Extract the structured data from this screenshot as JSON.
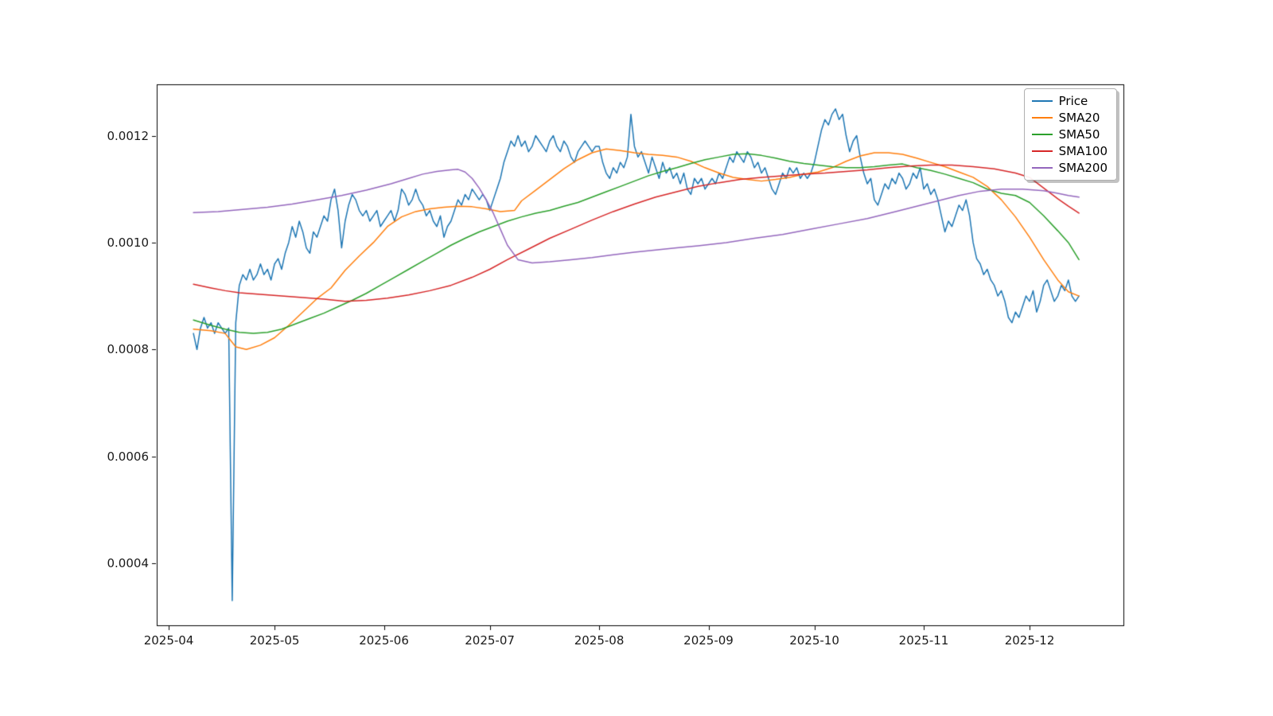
{
  "figure": {
    "background": "#ffffff",
    "axis_color": "#000000",
    "tick_label_color": "#1a1a1a"
  },
  "chart_data": {
    "type": "line",
    "title": "",
    "xlabel": "",
    "ylabel": "",
    "grid": false,
    "x_unit": "days since 2025-04-01",
    "xlim": [
      -3.4,
      270.6
    ],
    "ylim": [
      0.000284,
      0.001296
    ],
    "y_scale": 1e-05,
    "x_ticks": [
      {
        "value": 0,
        "label": "2025-04"
      },
      {
        "value": 30,
        "label": "2025-05"
      },
      {
        "value": 61,
        "label": "2025-06"
      },
      {
        "value": 91,
        "label": "2025-07"
      },
      {
        "value": 122,
        "label": "2025-08"
      },
      {
        "value": 153,
        "label": "2025-09"
      },
      {
        "value": 183,
        "label": "2025-10"
      },
      {
        "value": 214,
        "label": "2025-11"
      },
      {
        "value": 244,
        "label": "2025-12"
      }
    ],
    "y_ticks": [
      {
        "value": 0.0004,
        "label": "0.0004"
      },
      {
        "value": 0.0006,
        "label": "0.0006"
      },
      {
        "value": 0.0008,
        "label": "0.0008"
      },
      {
        "value": 0.001,
        "label": "0.0010"
      },
      {
        "value": 0.0012,
        "label": "0.0012"
      }
    ],
    "legend": {
      "position": "upper right",
      "entries": [
        "Price",
        "SMA20",
        "SMA50",
        "SMA100",
        "SMA200"
      ]
    },
    "series": [
      {
        "name": "Price",
        "color": "#1f77b4",
        "x0": 7,
        "dx": 1,
        "y": [
          83,
          80,
          84,
          86,
          84,
          85,
          83,
          85,
          84,
          83,
          84,
          33,
          85,
          92,
          94,
          93,
          95,
          93,
          94,
          96,
          94,
          95,
          93,
          96,
          97,
          95,
          98,
          100,
          103,
          101,
          104,
          102,
          99,
          98,
          102,
          101,
          103,
          105,
          104,
          108,
          110,
          106,
          99,
          104,
          107,
          109,
          108,
          106,
          105,
          106,
          104,
          105,
          106,
          103,
          104,
          105,
          106,
          104,
          106,
          110,
          109,
          107,
          108,
          110,
          108,
          107,
          105,
          106,
          104,
          103,
          105,
          101,
          103,
          104,
          106,
          108,
          107,
          109,
          108,
          110,
          109,
          108,
          109,
          108,
          106,
          108,
          110,
          112,
          115,
          117,
          119,
          118,
          120,
          118,
          119,
          117,
          118,
          120,
          119,
          118,
          117,
          119,
          120,
          118,
          117,
          119,
          118,
          116,
          115,
          117,
          118,
          119,
          118,
          117,
          118,
          118,
          115,
          113,
          112,
          114,
          113,
          115,
          114,
          116,
          124,
          118,
          116,
          117,
          115,
          113,
          116,
          114,
          112,
          115,
          113,
          114,
          112,
          113,
          111,
          113,
          110,
          109,
          112,
          111,
          112,
          110,
          111,
          112,
          111,
          113,
          112,
          114,
          116,
          115,
          117,
          116,
          115,
          117,
          116,
          114,
          115,
          113,
          114,
          112,
          110,
          109,
          111,
          113,
          112,
          114,
          113,
          114,
          112,
          113,
          112,
          113,
          115,
          118,
          121,
          123,
          122,
          124,
          125,
          123,
          124,
          120,
          117,
          119,
          120,
          116,
          113,
          111,
          112,
          108,
          107,
          109,
          111,
          110,
          112,
          111,
          113,
          112,
          110,
          111,
          113,
          112,
          114,
          110,
          111,
          109,
          110,
          108,
          105,
          102,
          104,
          103,
          105,
          107,
          106,
          108,
          105,
          100,
          97,
          96,
          94,
          95,
          93,
          92,
          90,
          91,
          89,
          86,
          85,
          87,
          86,
          88,
          90,
          89,
          91,
          87,
          89,
          92,
          93,
          91,
          89,
          90,
          92,
          91,
          93,
          90,
          89,
          90
        ]
      },
      {
        "name": "SMA20",
        "color": "#ff7f0e",
        "x": [
          7,
          12,
          16,
          19,
          22,
          26,
          30,
          34,
          38,
          42,
          46,
          50,
          54,
          58,
          62,
          66,
          70,
          74,
          78,
          82,
          86,
          90,
          94,
          98,
          100,
          104,
          108,
          112,
          116,
          120,
          124,
          128,
          132,
          136,
          140,
          144,
          148,
          152,
          156,
          160,
          164,
          168,
          172,
          176,
          180,
          184,
          188,
          192,
          196,
          200,
          204,
          208,
          212,
          216,
          220,
          224,
          228,
          232,
          236,
          240,
          244,
          248,
          252,
          255,
          258
        ],
        "y": [
          83.8,
          83.5,
          83.0,
          80.5,
          80.0,
          80.8,
          82.2,
          84.5,
          87.0,
          89.5,
          91.5,
          94.8,
          97.5,
          100.0,
          103.0,
          104.8,
          105.8,
          106.3,
          106.6,
          106.8,
          106.7,
          106.3,
          105.8,
          106.0,
          107.8,
          109.8,
          111.8,
          113.8,
          115.5,
          116.8,
          117.5,
          117.2,
          116.8,
          116.5,
          116.3,
          116.0,
          115.2,
          114.0,
          113.0,
          112.2,
          111.8,
          111.5,
          111.8,
          112.2,
          112.8,
          113.2,
          114.0,
          115.2,
          116.2,
          116.8,
          116.8,
          116.5,
          115.8,
          115.0,
          114.2,
          113.2,
          112.2,
          110.5,
          108.0,
          104.8,
          101.0,
          96.8,
          93.0,
          90.8,
          90.0
        ]
      },
      {
        "name": "SMA50",
        "color": "#2ca02c",
        "x": [
          7,
          12,
          16,
          20,
          24,
          28,
          32,
          36,
          40,
          44,
          48,
          52,
          56,
          60,
          64,
          68,
          72,
          76,
          80,
          84,
          88,
          92,
          96,
          100,
          104,
          108,
          112,
          116,
          120,
          124,
          128,
          132,
          136,
          140,
          144,
          148,
          152,
          156,
          160,
          164,
          168,
          172,
          176,
          180,
          184,
          188,
          192,
          196,
          200,
          204,
          208,
          212,
          216,
          220,
          224,
          228,
          232,
          236,
          240,
          244,
          248,
          252,
          255,
          258
        ],
        "y": [
          85.5,
          84.5,
          83.8,
          83.2,
          83.0,
          83.2,
          83.8,
          84.8,
          85.8,
          86.8,
          88.0,
          89.2,
          90.5,
          92.0,
          93.5,
          95.0,
          96.5,
          98.0,
          99.5,
          100.8,
          102.0,
          103.0,
          104.0,
          104.8,
          105.5,
          106.0,
          106.8,
          107.5,
          108.5,
          109.5,
          110.5,
          111.5,
          112.5,
          113.3,
          114.0,
          114.8,
          115.5,
          116.0,
          116.5,
          116.6,
          116.3,
          115.8,
          115.2,
          114.8,
          114.5,
          114.2,
          114.0,
          114.0,
          114.2,
          114.5,
          114.7,
          114.0,
          113.5,
          112.8,
          112.0,
          111.2,
          110.0,
          109.2,
          108.8,
          107.5,
          105.0,
          102.2,
          100.0,
          96.8
        ]
      },
      {
        "name": "SMA100",
        "color": "#d62728",
        "x": [
          7,
          12,
          16,
          20,
          26,
          32,
          38,
          44,
          50,
          56,
          62,
          68,
          74,
          80,
          86,
          91,
          96,
          102,
          108,
          114,
          120,
          126,
          132,
          138,
          144,
          150,
          156,
          162,
          168,
          174,
          180,
          186,
          192,
          198,
          204,
          210,
          216,
          222,
          228,
          234,
          240,
          244,
          248,
          252,
          255,
          258
        ],
        "y": [
          92.2,
          91.5,
          91.0,
          90.6,
          90.3,
          90.0,
          89.7,
          89.4,
          89.0,
          89.2,
          89.6,
          90.2,
          91.0,
          92.0,
          93.5,
          95.0,
          96.8,
          98.8,
          100.8,
          102.5,
          104.2,
          105.8,
          107.2,
          108.5,
          109.5,
          110.5,
          111.2,
          111.8,
          112.2,
          112.5,
          112.8,
          113.0,
          113.3,
          113.6,
          114.0,
          114.3,
          114.5,
          114.5,
          114.2,
          113.8,
          113.0,
          112.2,
          110.2,
          108.2,
          106.8,
          105.5
        ]
      },
      {
        "name": "SMA200",
        "color": "#9467bd",
        "x": [
          7,
          14,
          21,
          28,
          35,
          42,
          49,
          56,
          63,
          68,
          72,
          76,
          80,
          82,
          84,
          86,
          88,
          90,
          92,
          94,
          96,
          99,
          103,
          108,
          114,
          120,
          126,
          132,
          138,
          144,
          150,
          158,
          166,
          174,
          182,
          190,
          198,
          206,
          212,
          218,
          224,
          230,
          236,
          242,
          248,
          252,
          255,
          258
        ],
        "y": [
          105.6,
          105.8,
          106.2,
          106.6,
          107.2,
          108.0,
          108.8,
          109.8,
          111.0,
          112.0,
          112.8,
          113.3,
          113.6,
          113.7,
          113.2,
          112.0,
          110.2,
          108.0,
          105.5,
          102.5,
          99.5,
          96.8,
          96.2,
          96.4,
          96.8,
          97.2,
          97.7,
          98.2,
          98.6,
          99.0,
          99.4,
          100.0,
          100.8,
          101.5,
          102.5,
          103.5,
          104.5,
          105.8,
          106.8,
          107.8,
          108.8,
          109.6,
          110.0,
          110.0,
          109.7,
          109.2,
          108.8,
          108.5
        ]
      }
    ]
  }
}
